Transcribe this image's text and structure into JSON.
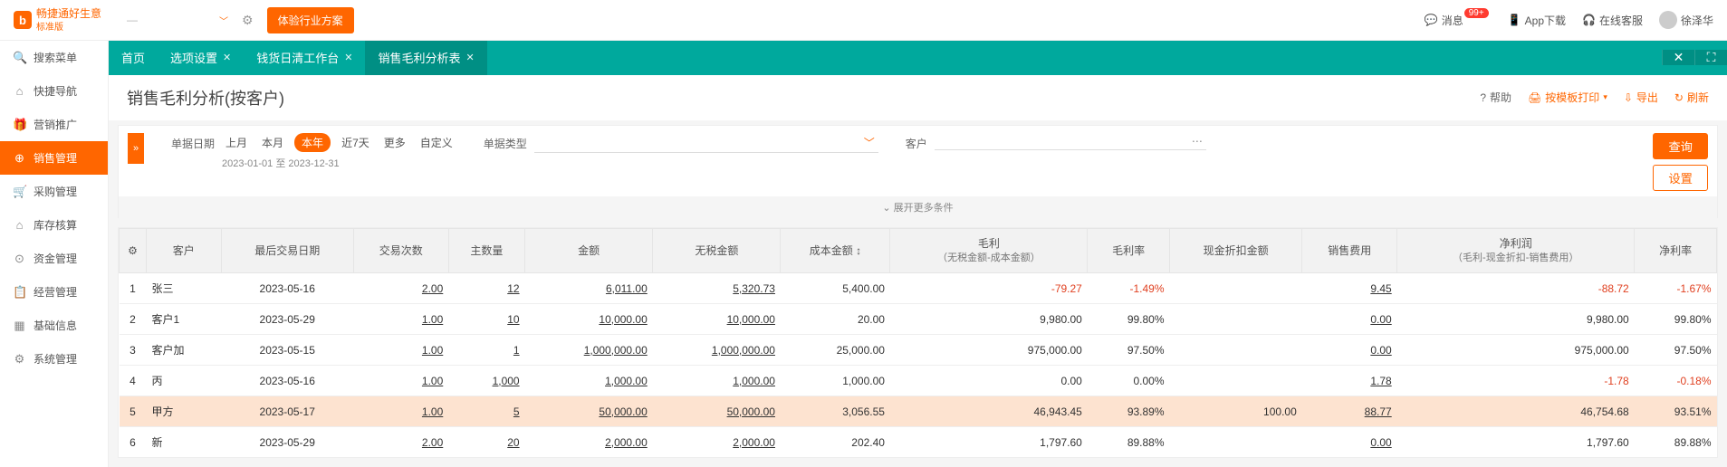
{
  "brand": {
    "name": "畅捷通好生意",
    "edition": "标准版",
    "logo_letter": "b"
  },
  "org": {
    "name": "—"
  },
  "top_buttons": {
    "trial": "体验行业方案"
  },
  "top_right": {
    "message": "消息",
    "message_badge": "99+",
    "download": "App下载",
    "service": "在线客服",
    "user": "徐泽华"
  },
  "sidebar": [
    {
      "icon": "🔍",
      "label": "搜索菜单"
    },
    {
      "icon": "⌂",
      "label": "快捷导航"
    },
    {
      "icon": "🎁",
      "label": "营销推广"
    },
    {
      "icon": "⊕",
      "label": "销售管理",
      "active": true
    },
    {
      "icon": "🛒",
      "label": "采购管理"
    },
    {
      "icon": "⌂",
      "label": "库存核算"
    },
    {
      "icon": "⊙",
      "label": "资金管理"
    },
    {
      "icon": "📋",
      "label": "经营管理"
    },
    {
      "icon": "▦",
      "label": "基础信息"
    },
    {
      "icon": "⚙",
      "label": "系统管理"
    }
  ],
  "tabs": [
    {
      "label": "首页",
      "closable": false
    },
    {
      "label": "选项设置",
      "closable": true
    },
    {
      "label": "钱货日清工作台",
      "closable": true
    },
    {
      "label": "销售毛利分析表",
      "closable": true,
      "active": true
    }
  ],
  "page": {
    "title": "销售毛利分析(按客户)",
    "actions": {
      "help": "帮助",
      "print": "按模板打印",
      "export": "导出",
      "refresh": "刷新"
    }
  },
  "filters": {
    "date_label": "单据日期",
    "shortcuts": [
      "上月",
      "本月",
      "本年",
      "近7天",
      "更多",
      "自定义"
    ],
    "shortcut_active": 2,
    "date_range": "2023-01-01 至 2023-12-31",
    "doc_type_label": "单据类型",
    "customer_label": "客户",
    "btn_search": "查询",
    "btn_setting": "设置",
    "more": "展开更多条件"
  },
  "table": {
    "columns": [
      {
        "key": "gear",
        "label": "⚙"
      },
      {
        "key": "customer",
        "label": "客户"
      },
      {
        "key": "last_date",
        "label": "最后交易日期"
      },
      {
        "key": "trade_count",
        "label": "交易次数"
      },
      {
        "key": "main_qty",
        "label": "主数量"
      },
      {
        "key": "amount",
        "label": "金额"
      },
      {
        "key": "amount_notax",
        "label": "无税金额"
      },
      {
        "key": "cost",
        "label": "成本金额",
        "sortable": true
      },
      {
        "key": "gross",
        "label": "毛利",
        "sub": "（无税金额-成本金额）"
      },
      {
        "key": "gross_rate",
        "label": "毛利率"
      },
      {
        "key": "cash_disc",
        "label": "现金折扣金额"
      },
      {
        "key": "sales_cost",
        "label": "销售费用"
      },
      {
        "key": "net_profit",
        "label": "净利润",
        "sub": "（毛利-现金折扣-销售费用）"
      },
      {
        "key": "net_rate",
        "label": "净利率"
      }
    ],
    "rows": [
      {
        "idx": 1,
        "customer": "张三",
        "last_date": "2023-05-16",
        "trade_count": "2.00",
        "main_qty": "12",
        "amount": "6,011.00",
        "amount_notax": "5,320.73",
        "cost": "5,400.00",
        "gross": "-79.27",
        "gross_neg": true,
        "gross_rate": "-1.49%",
        "gross_rate_neg": true,
        "cash_disc": "",
        "sales_cost": "9.45",
        "net_profit": "-88.72",
        "net_neg": true,
        "net_rate": "-1.67%",
        "net_rate_neg": true
      },
      {
        "idx": 2,
        "customer": "客户1",
        "last_date": "2023-05-29",
        "trade_count": "1.00",
        "main_qty": "10",
        "amount": "10,000.00",
        "amount_notax": "10,000.00",
        "cost": "20.00",
        "gross": "9,980.00",
        "gross_rate": "99.80%",
        "cash_disc": "",
        "sales_cost": "0.00",
        "net_profit": "9,980.00",
        "net_rate": "99.80%"
      },
      {
        "idx": 3,
        "customer": "客户加",
        "last_date": "2023-05-15",
        "trade_count": "1.00",
        "main_qty": "1",
        "amount": "1,000,000.00",
        "amount_notax": "1,000,000.00",
        "cost": "25,000.00",
        "gross": "975,000.00",
        "gross_rate": "97.50%",
        "cash_disc": "",
        "sales_cost": "0.00",
        "net_profit": "975,000.00",
        "net_rate": "97.50%"
      },
      {
        "idx": 4,
        "customer": "丙",
        "last_date": "2023-05-16",
        "trade_count": "1.00",
        "main_qty": "1,000",
        "amount": "1,000.00",
        "amount_notax": "1,000.00",
        "cost": "1,000.00",
        "gross": "0.00",
        "gross_rate": "0.00%",
        "cash_disc": "",
        "sales_cost": "1.78",
        "net_profit": "-1.78",
        "net_neg": true,
        "net_rate": "-0.18%",
        "net_rate_neg": true
      },
      {
        "idx": 5,
        "customer": "甲方",
        "last_date": "2023-05-17",
        "trade_count": "1.00",
        "main_qty": "5",
        "amount": "50,000.00",
        "amount_notax": "50,000.00",
        "cost": "3,056.55",
        "gross": "46,943.45",
        "gross_rate": "93.89%",
        "cash_disc": "100.00",
        "sales_cost": "88.77",
        "net_profit": "46,754.68",
        "net_rate": "93.51%",
        "highlight": true
      },
      {
        "idx": 6,
        "customer": "新",
        "last_date": "2023-05-29",
        "trade_count": "2.00",
        "main_qty": "20",
        "amount": "2,000.00",
        "amount_notax": "2,000.00",
        "cost": "202.40",
        "gross": "1,797.60",
        "gross_rate": "89.88%",
        "cash_disc": "",
        "sales_cost": "0.00",
        "net_profit": "1,797.60",
        "net_rate": "89.88%"
      }
    ]
  }
}
